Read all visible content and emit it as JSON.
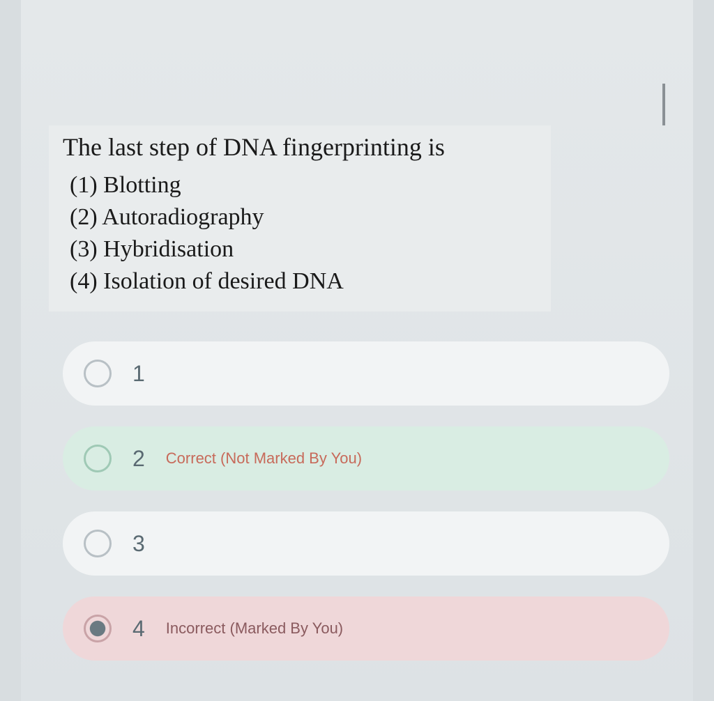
{
  "question": {
    "text": "The last step of DNA fingerprinting is",
    "choices": [
      {
        "num": "(1)",
        "label": "Blotting"
      },
      {
        "num": "(2)",
        "label": "Autoradiography"
      },
      {
        "num": "(3)",
        "label": "Hybridisation"
      },
      {
        "num": "(4)",
        "label": "Isolation of desired DNA"
      }
    ]
  },
  "answers": [
    {
      "number": "1",
      "state": "default",
      "tag": "",
      "selected": false,
      "bg_color": "#f2f4f5",
      "radio_border": "#b8c0c5",
      "tag_color": ""
    },
    {
      "number": "2",
      "state": "correct",
      "tag": "Correct (Not Marked By You)",
      "selected": false,
      "bg_color": "#d9ede3",
      "radio_border": "#9fc9b5",
      "tag_color": "#c76a5a"
    },
    {
      "number": "3",
      "state": "default",
      "tag": "",
      "selected": false,
      "bg_color": "#f2f4f5",
      "radio_border": "#b8c0c5",
      "tag_color": ""
    },
    {
      "number": "4",
      "state": "incorrect",
      "tag": "Incorrect (Marked By You)",
      "selected": true,
      "bg_color": "#efd7d9",
      "radio_border": "#c9a3a7",
      "tag_color": "#8a5a5e"
    }
  ],
  "colors": {
    "page_bg": "#d8dde0",
    "question_bg": "#e9eced",
    "text": "#1a1a1a",
    "option_number": "#5a6a72"
  }
}
